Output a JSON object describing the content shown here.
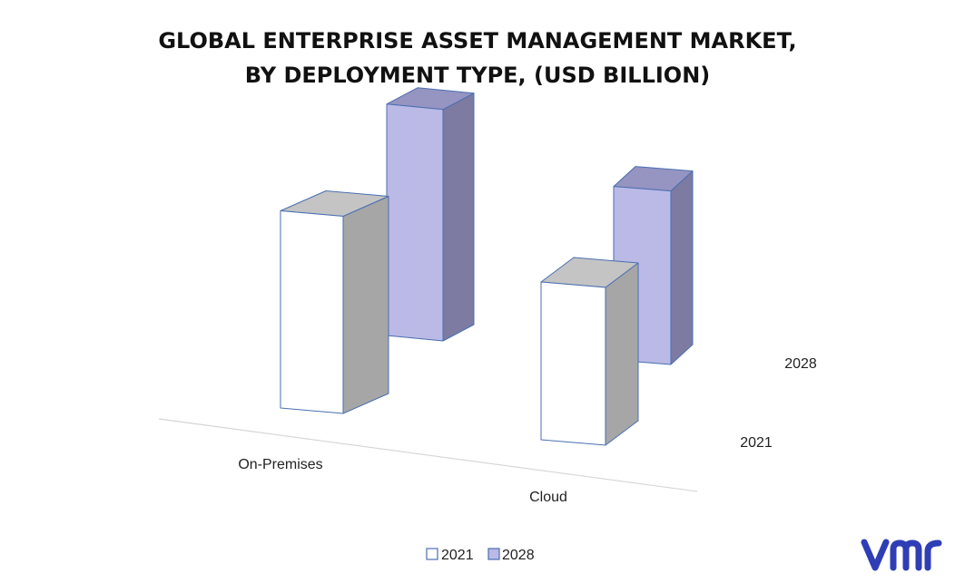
{
  "title": {
    "line1": "GLOBAL ENTERPRISE ASSET MANAGEMENT MARKET,",
    "line2": "BY DEPLOYMENT TYPE, (USD BILLION)"
  },
  "chart_data": {
    "type": "bar",
    "title": "GLOBAL ENTERPRISE ASSET MANAGEMENT MARKET, BY DEPLOYMENT TYPE, (USD BILLION)",
    "categories": [
      "On-Premises",
      "Cloud"
    ],
    "series": [
      {
        "name": "2021",
        "values": [
          7.5,
          6.0
        ],
        "face": "#ffffff",
        "side": "#a6a6a6",
        "top": "#c4c4c4"
      },
      {
        "name": "2028",
        "values": [
          8.8,
          6.6
        ],
        "face": "#bbb9e6",
        "side": "#7d7ba2",
        "top": "#9694c1"
      }
    ],
    "depth_labels": [
      "2021",
      "2028"
    ],
    "legend": {
      "position": "bottom",
      "entries": [
        "2021",
        "2028"
      ]
    },
    "grid": false,
    "three_d": true
  },
  "colors": {
    "outline": "#4a6fb0",
    "baseline": "#d6d6d6",
    "logo": "#2f3eb5"
  }
}
